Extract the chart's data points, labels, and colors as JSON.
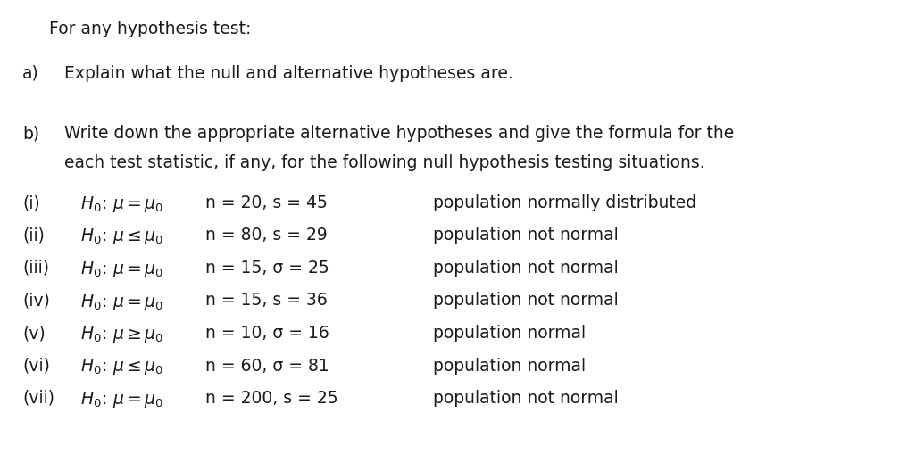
{
  "background_color": "#ffffff",
  "title_line": "For any hypothesis test:",
  "part_a_label": "a)",
  "part_a_text": "Explain what the null and alternative hypotheses are.",
  "part_b_label": "b)",
  "part_b_text_line1": "Write down the appropriate alternative hypotheses and give the formula for the",
  "part_b_text_line2": "each test statistic, if any, for the following null hypothesis testing situations.",
  "rows": [
    {
      "num": "(i)",
      "hyp": "$H_0\\!:\\, \\mu = \\mu_0$",
      "params": "n = 20, s = 45",
      "dist": "population normally distributed"
    },
    {
      "num": "(ii)",
      "hyp": "$H_0\\!:\\, \\mu \\leq \\mu_0$",
      "params": "n = 80, s = 29",
      "dist": "population not normal"
    },
    {
      "num": "(iii)",
      "hyp": "$H_0\\!:\\, \\mu = \\mu_0$",
      "params": "n = 15, σ = 25",
      "dist": "population not normal"
    },
    {
      "num": "(iv)",
      "hyp": "$H_0\\!:\\, \\mu = \\mu_0$",
      "params": "n = 15, s = 36",
      "dist": "population not normal"
    },
    {
      "num": "(v)",
      "hyp": "$H_0\\!:\\, \\mu \\geq \\mu_0$",
      "params": "n = 10, σ = 16",
      "dist": "population normal"
    },
    {
      "num": "(vi)",
      "hyp": "$H_0\\!:\\, \\mu \\leq \\mu_0$",
      "params": "n = 60, σ = 81",
      "dist": "population normal"
    },
    {
      "num": "(vii)",
      "hyp": "$H_0\\!:\\, \\mu = \\mu_0$",
      "params": "n = 200, s = 25",
      "dist": "population not normal"
    }
  ],
  "font_size": 13.5,
  "text_color": "#1a1a1a",
  "fig_width": 10.07,
  "fig_height": 5.28,
  "dpi": 100
}
